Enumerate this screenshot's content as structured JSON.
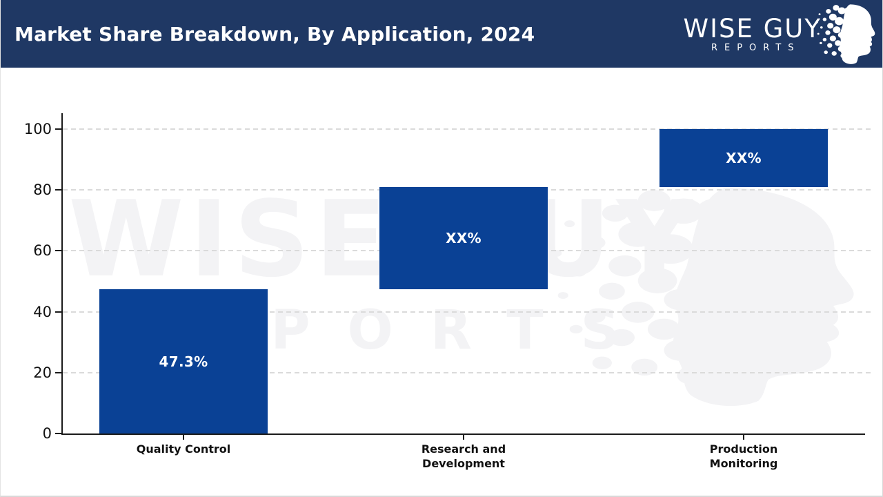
{
  "header": {
    "title": "Market Share Breakdown, By Application, 2024",
    "bg_color": "#1f3864",
    "logo": {
      "line1": "WISE GUY",
      "line2": "REPORTS",
      "icon": "dotted-head-profile-icon",
      "color": "#ffffff"
    }
  },
  "watermark": {
    "line1": "WISE GUY",
    "line2": "REPORTS",
    "icon": "dotted-head-profile-watermark",
    "color": "#f3f3f5"
  },
  "chart_data": {
    "type": "bar",
    "subtype": "floating-waterfall",
    "title": "Market Share Breakdown, By Application, 2024",
    "categories": [
      [
        "Quality Control"
      ],
      [
        "Research and",
        "Development"
      ],
      [
        "Production",
        "Monitoring"
      ]
    ],
    "bars": [
      {
        "category": "Quality Control",
        "start": 0,
        "end": 47.3,
        "label": "47.3%"
      },
      {
        "category": "Research and Development",
        "start": 47.3,
        "end": 81,
        "label": "XX%"
      },
      {
        "category": "Production Monitoring",
        "start": 81,
        "end": 100,
        "label": "XX%"
      }
    ],
    "yticks": [
      0,
      20,
      40,
      60,
      80,
      100
    ],
    "ylim": [
      0,
      100
    ],
    "grid": "horizontal-dashed",
    "legend": "none",
    "bar_color": "#0a4195",
    "value_label_color": "#ffffff",
    "axis_color": "#1a1a1a",
    "grid_color": "#dadada"
  }
}
